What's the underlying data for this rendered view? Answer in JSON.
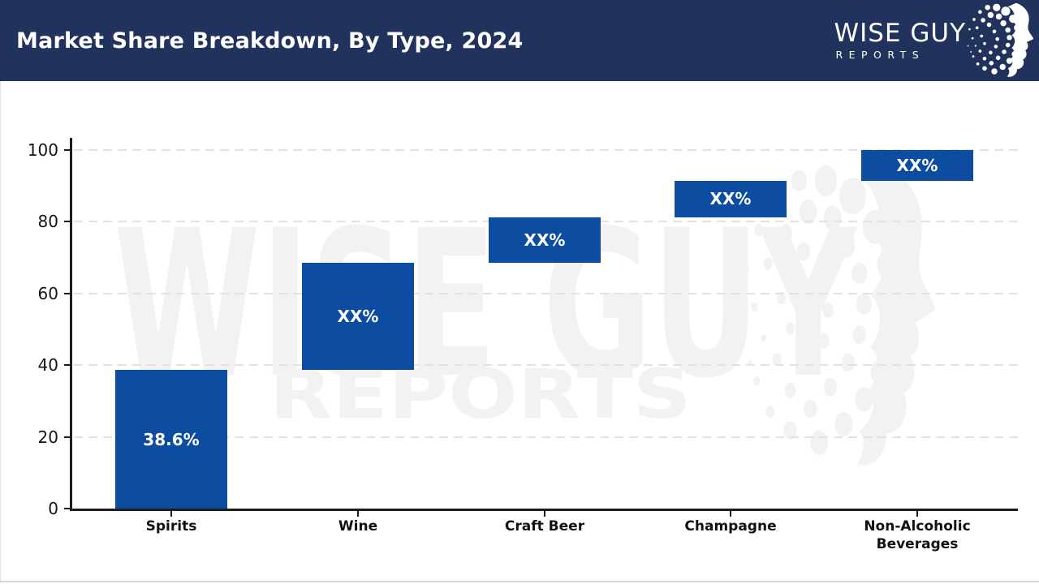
{
  "header": {
    "title": "Market Share Breakdown, By Type, 2024",
    "logo": {
      "line1": "WISE GUY",
      "line2": "REPORTS"
    }
  },
  "watermark": {
    "line1": "WISE GUY",
    "line2": "REPORTS"
  },
  "chart_data": {
    "type": "bar",
    "subtype": "waterfall",
    "title": "Market Share Breakdown, By Type, 2024",
    "categories": [
      "Spirits",
      "Wine",
      "Craft Beer",
      "Champagne",
      "Non-Alcoholic Beverages"
    ],
    "segments": [
      {
        "category": "Spirits",
        "start": 0,
        "end": 38.6,
        "value": 38.6,
        "label": "38.6%"
      },
      {
        "category": "Wine",
        "start": 38.6,
        "end": 68.6,
        "value": 30.0,
        "label": "XX%"
      },
      {
        "category": "Craft Beer",
        "start": 68.6,
        "end": 81.3,
        "value": 12.7,
        "label": "XX%"
      },
      {
        "category": "Champagne",
        "start": 81.3,
        "end": 91.4,
        "value": 10.1,
        "label": "XX%"
      },
      {
        "category": "Non-Alcoholic Beverages",
        "start": 91.4,
        "end": 100,
        "value": 8.6,
        "label": "XX%"
      }
    ],
    "xlabel": "",
    "ylabel": "",
    "ylim": [
      0,
      105
    ],
    "yticks": [
      0,
      20,
      40,
      60,
      80,
      100
    ],
    "grid": "horizontal-dashed",
    "legend": "none"
  },
  "colors": {
    "header_bg": "#21335C",
    "bar": "#0C4DA2",
    "bar_label": "#FFFFFF",
    "axis": "#1C1C1C",
    "grid": "#E2E2E2",
    "watermark": "#F2F2F4"
  }
}
